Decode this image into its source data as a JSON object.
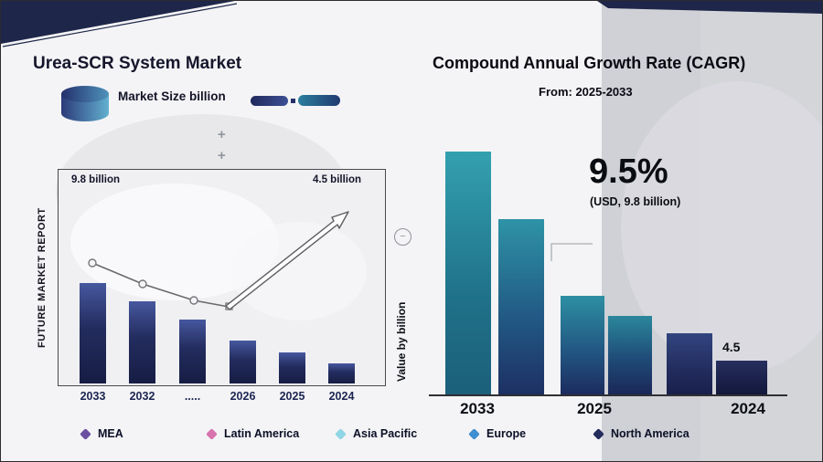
{
  "palette": {
    "navy": "#1e2749",
    "teal": "#227f95",
    "band_gray": "#d3d5d9",
    "background": "#f4f4f6",
    "text_dark": "#10142c"
  },
  "left_panel": {
    "title": "Urea-SCR System Market",
    "legend_label": "Market Size billion",
    "side_label": "FUTURE MARKET REPORT",
    "annotation_start": "9.8 billion",
    "annotation_end": "4.5 billion"
  },
  "right_panel": {
    "title": "Compound Annual Growth Rate (CAGR)",
    "subtitle": "From: 2025-2033",
    "cagr_value": "9.5%",
    "cagr_note": "(USD, 9.8 billion)",
    "ylabel": "Value by billion",
    "bar_annotation": "4.5"
  },
  "bottom_legend": [
    {
      "label": "MEA",
      "color": "#6a4fa1"
    },
    {
      "label": "Latin America",
      "color": "#d873ae"
    },
    {
      "label": "Asia Pacific",
      "color": "#90d5e5"
    },
    {
      "label": "Europe",
      "color": "#3e8ed0"
    },
    {
      "label": "North America",
      "color": "#232c5c"
    }
  ],
  "decorations": {
    "plus": "+",
    "minus": "−"
  },
  "chart_data": [
    {
      "type": "bar",
      "title": "Urea-SCR System Market",
      "legend": "Market Size billion",
      "categories": [
        "2033",
        "2032",
        ".....",
        "2026",
        "2025",
        "2024"
      ],
      "values": [
        9.8,
        8.6,
        7.4,
        6.0,
        5.2,
        4.5
      ],
      "ylabel": "",
      "annotations": [
        {
          "text": "9.8 billion",
          "at": "2033"
        },
        {
          "text": "4.5 billion",
          "at": "2024"
        }
      ],
      "note": "descending navy bars, years run 2033 to 2024 left-to-right, trend line with upward outline arrow"
    },
    {
      "type": "bar",
      "title": "Compound Annual Growth Rate (CAGR)",
      "subtitle": "From: 2025-2033",
      "categories": [
        "2033",
        "2025",
        "2024"
      ],
      "series": [
        {
          "name": "primary",
          "values": [
            9.8,
            4.0,
            2.5
          ]
        },
        {
          "name": "secondary",
          "values": [
            7.1,
            3.2,
            1.4
          ]
        }
      ],
      "ylabel": "Value by billion",
      "annotations": [
        {
          "text": "9.5%"
        },
        {
          "text": "(USD, 9.8 billion)"
        },
        {
          "text": "4.5",
          "at": "2024"
        }
      ]
    }
  ]
}
